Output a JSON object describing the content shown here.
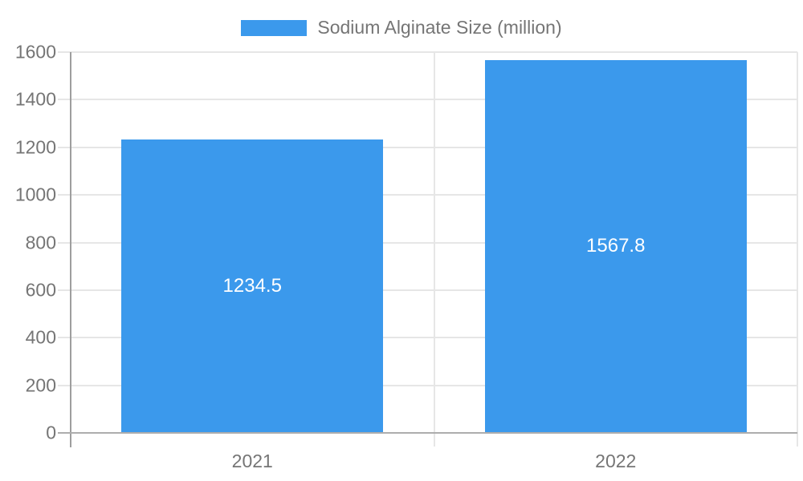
{
  "legend": {
    "items": [
      {
        "label": "Sodium Alginate Size (million)",
        "color": "#3B99EC"
      }
    ]
  },
  "chart_data": {
    "type": "bar",
    "title": "",
    "categories": [
      "2021",
      "2022"
    ],
    "series": [
      {
        "name": "Sodium Alginate Size (million)",
        "color": "#3B99EC",
        "values": [
          1234.5,
          1567.8
        ]
      }
    ],
    "value_labels": [
      "1234.5",
      "1567.8"
    ],
    "ylim": [
      0,
      1600
    ],
    "yticks": [
      0,
      200,
      400,
      600,
      800,
      1000,
      1200,
      1400,
      1600
    ],
    "xlabel": "",
    "ylabel": "",
    "grid": true,
    "legend_position": "top"
  },
  "colors": {
    "bar": "#3B99EC",
    "bar_label": "#FFFFFF",
    "axis_text": "#757575",
    "gridline": "#E6E6E6",
    "axis_line": "#9E9E9E",
    "baseline": "#ADADAD",
    "background": "#FFFFFF"
  }
}
